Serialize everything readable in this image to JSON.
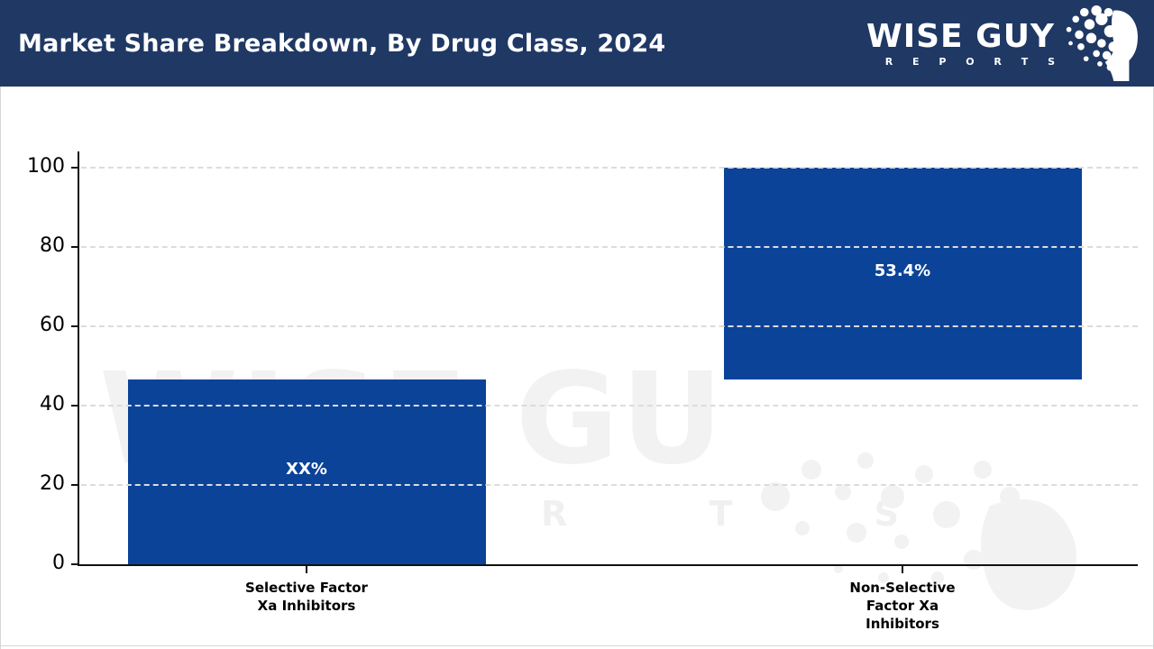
{
  "header": {
    "title": "Market Share Breakdown, By Drug Class, 2024",
    "bg_color": "#1f3864",
    "text_color": "#ffffff"
  },
  "logo": {
    "line1": "WISE GUY",
    "line2": "R E P O R T S",
    "head_icon": "dotted-face-profile"
  },
  "watermark": {
    "text_main": "WISE GU",
    "text_sub": "R T S",
    "color": "#f2f2f2"
  },
  "chart_data": {
    "type": "bar",
    "title": "Market Share Breakdown, By Drug Class, 2024",
    "categories": [
      "Selective Factor\nXa Inhibitors",
      "Non-Selective\nFactor Xa\nInhibitors"
    ],
    "series": [
      {
        "name": "Market Share (%)",
        "values": [
          46.6,
          53.4
        ]
      }
    ],
    "bar_bottoms": [
      0,
      46.6
    ],
    "bar_labels": [
      "XX%",
      "53.4%"
    ],
    "bar_color": "#0b4398",
    "label_color": "#ffffff",
    "yticks": [
      0,
      20,
      40,
      60,
      80,
      100
    ],
    "ytick_labels": [
      "0",
      "20",
      "40",
      "60",
      "80",
      "100"
    ],
    "ylim": [
      0,
      104
    ],
    "xlabel": "",
    "ylabel": "",
    "grid": "horizontal-dashed",
    "grid_color": "#dcdcdc",
    "axis_color": "#111111",
    "legend": "none"
  }
}
